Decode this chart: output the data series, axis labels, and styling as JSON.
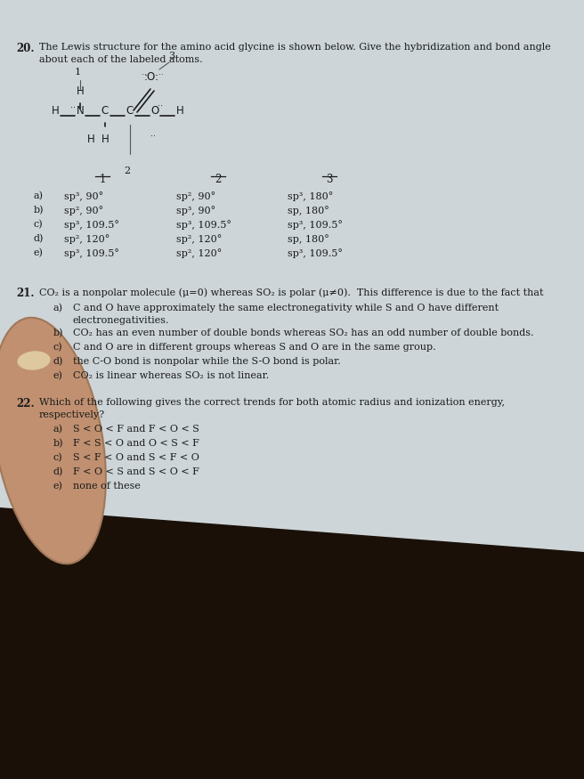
{
  "bg_color": "#c8cfd2",
  "paper_color": "#cdd5d8",
  "text_color": "#1a1a1a",
  "q20_number": "20.",
  "q20_text_line1": "The Lewis structure for the amino acid glycine is shown below. Give the hybridization and bond angle",
  "q20_text_line2": "about each of the labeled atoms.",
  "col_headers": [
    "1",
    "2",
    "3"
  ],
  "choices": [
    {
      "letter": "a)",
      "c1": "sp³, 90°",
      "c2": "sp², 90°",
      "c3": "sp³, 180°"
    },
    {
      "letter": "b)",
      "c1": "sp², 90°",
      "c2": "sp³, 90°",
      "c3": "sp, 180°"
    },
    {
      "letter": "c)",
      "c1": "sp³, 109.5°",
      "c2": "sp³, 109.5°",
      "c3": "sp³, 109.5°"
    },
    {
      "letter": "d)",
      "c1": "sp², 120°",
      "c2": "sp², 120°",
      "c3": "sp, 180°"
    },
    {
      "letter": "e)",
      "c1": "sp³, 109.5°",
      "c2": "sp², 120°",
      "c3": "sp³, 109.5°"
    }
  ],
  "q21_number": "21.",
  "q21_text_line1": "CO₂ is a nonpolar molecule (μ=0) whereas SO₂ is polar (μ≠0).  This difference is due to the fact that",
  "q21_choices_a_line1": "C and O have approximately the same electronegativity while S and O have different",
  "q21_choices_a_line2": "electronegativities.",
  "q21_choices_b": "CO₂ has an even number of double bonds whereas SO₂ has an odd number of double bonds.",
  "q21_choices_c": "C and O are in different groups whereas S and O are in the same group.",
  "q21_choices_d": "the C-O bond is nonpolar while the S-O bond is polar.",
  "q21_choices_e": "CO₂ is linear whereas SO₂ is not linear.",
  "q22_number": "22.",
  "q22_text_line1": "Which of the following gives the correct trends for both atomic radius and ionization energy,",
  "q22_text_line2": "respectively?",
  "q22_choices": [
    {
      "letter": "a)",
      "text": "S < O < F and F < O < S"
    },
    {
      "letter": "b)",
      "text": "F < S < O and O < S < F"
    },
    {
      "letter": "c)",
      "text": "S < F < O and S < F < O"
    },
    {
      "letter": "d)",
      "text": "F < O < S and S < O < F"
    },
    {
      "letter": "e)",
      "text": "none of these"
    }
  ],
  "dark_bg_color": "#1a1008",
  "finger_color": "#c09070",
  "finger_light": "#d4a882"
}
